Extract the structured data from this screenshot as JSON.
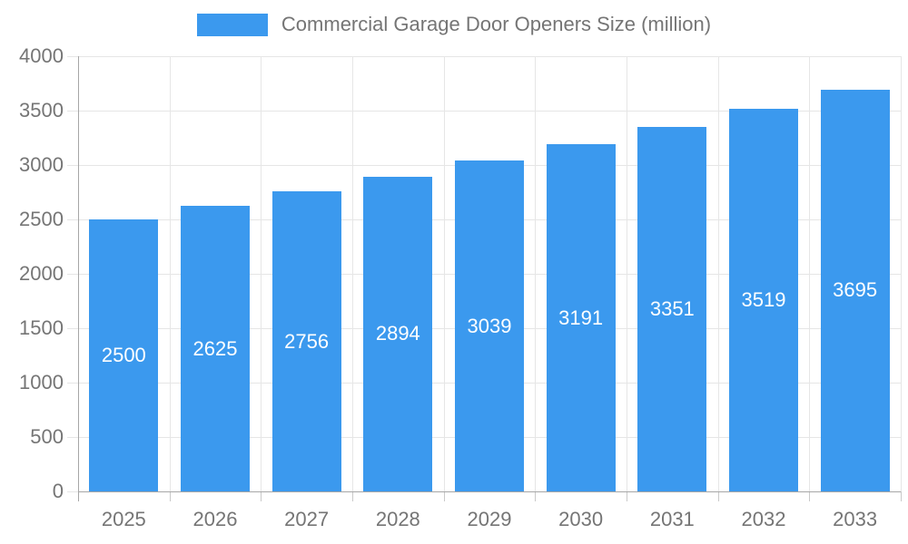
{
  "legend": {
    "label": "Commercial Garage Door Openers Size (million)",
    "swatch_color": "#3B99EE",
    "position": "top"
  },
  "chart_data": {
    "type": "bar",
    "title": "Commercial Garage Door Openers Size (million)",
    "categories": [
      "2025",
      "2026",
      "2027",
      "2028",
      "2029",
      "2030",
      "2031",
      "2032",
      "2033"
    ],
    "values": [
      2500,
      2625,
      2756,
      2894,
      3039,
      3191,
      3351,
      3519,
      3695
    ],
    "xlabel": "",
    "ylabel": "",
    "ylim": [
      0,
      4000
    ],
    "yticks": [
      0,
      500,
      1000,
      1500,
      2000,
      2500,
      3000,
      3500,
      4000
    ],
    "grid": true,
    "legend_position": "top",
    "bar_labels_inside": true,
    "colors": {
      "bar": "#3B99EE",
      "bar_label": "#ffffff",
      "grid": "#e6e6e6",
      "axis": "#a6a6a6",
      "tick": "#c9c9c9",
      "text": "#757575"
    }
  }
}
